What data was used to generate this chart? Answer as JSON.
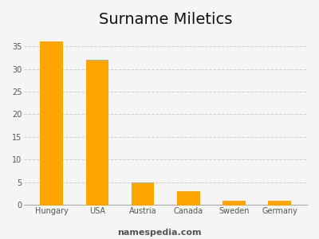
{
  "title": "Surname Miletics",
  "categories": [
    "Hungary",
    "USA",
    "Austria",
    "Canada",
    "Sweden",
    "Germany"
  ],
  "values": [
    36,
    32,
    5,
    3,
    1,
    1
  ],
  "bar_color": "#FFA500",
  "background_color": "#f5f5f5",
  "ylim": [
    0,
    38
  ],
  "yticks": [
    0,
    5,
    10,
    15,
    20,
    25,
    30,
    35
  ],
  "grid_color": "#cccccc",
  "title_fontsize": 14,
  "tick_fontsize": 7,
  "watermark": "namespedia.com",
  "watermark_fontsize": 8
}
